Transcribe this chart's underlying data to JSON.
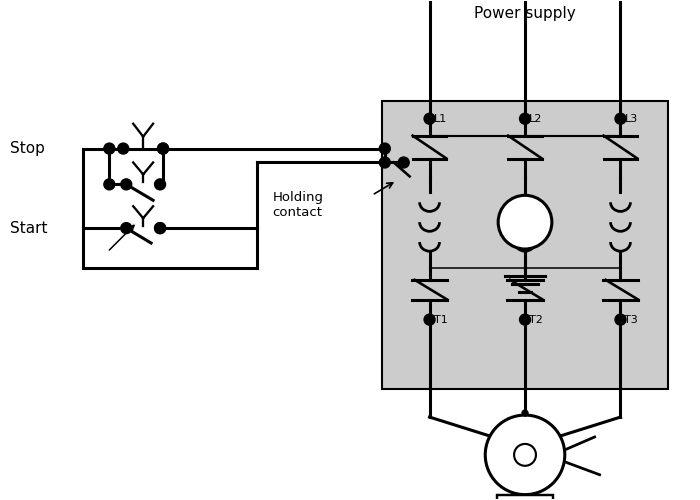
{
  "bg_color": "#ffffff",
  "box_color": "#cccccc",
  "line_color": "#000000",
  "lw": 2.2,
  "labels": {
    "stop": "Stop",
    "start": "Start",
    "holding": "Holding\ncontact",
    "power": "Power supply",
    "L1": "L1",
    "L2": "L2",
    "L3": "L3",
    "T1": "T1",
    "T2": "T2",
    "T3": "T3"
  }
}
